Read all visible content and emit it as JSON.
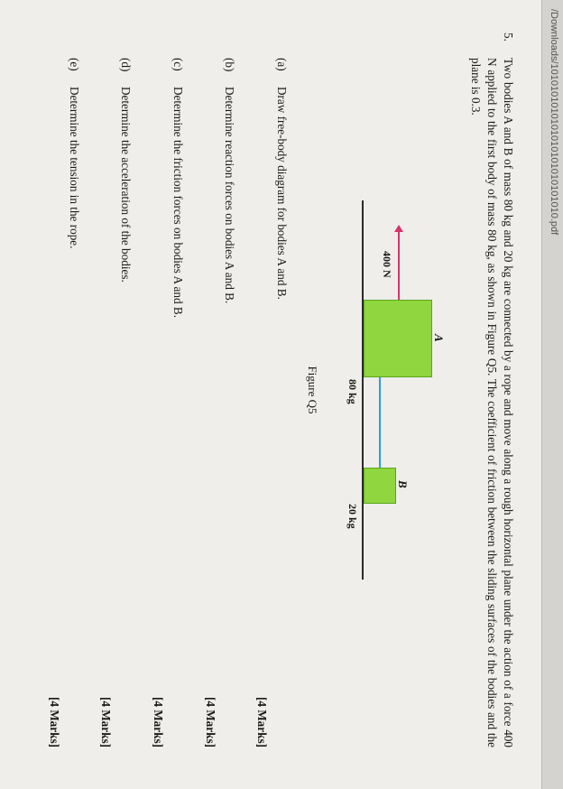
{
  "tab": {
    "filename": "/Downloads/1010101010101010101010101010.pdf"
  },
  "question": {
    "number": "5.",
    "stem": "Two bodies A and B of mass 80 kg and 20 kg are connected by a rope and move along a rough horizontal plane under the action of a force 400 N applied to the first body of mass 80 kg, as shown in Figure Q5. The coefficient of friction between the sliding surfaces of the bodies and the plane is 0.3."
  },
  "figure": {
    "label_a": "A",
    "label_b": "B",
    "mass_a": "80 kg",
    "mass_b": "20 kg",
    "force": "400 N",
    "caption": "Figure Q5",
    "colors": {
      "block_fill": "#8fd63f",
      "block_border": "#5aa61a",
      "arrow": "#d6336c",
      "rope": "#2aa0d8",
      "surface": "#2a2a2a"
    }
  },
  "parts": [
    {
      "label": "(a)",
      "text": "Draw free-body diagram for bodies A and B.",
      "marks": "[4 Marks]"
    },
    {
      "label": "(b)",
      "text": "Determine reaction forces on bodies A and B.",
      "marks": "[4 Marks]"
    },
    {
      "label": "(c)",
      "text": "Determine the friction forces on bodies A and B.",
      "marks": "[4 Marks]"
    },
    {
      "label": "(d)",
      "text": "Determine the acceleration of the bodies.",
      "marks": "[4 Marks]"
    },
    {
      "label": "(e)",
      "text": "Determine the tension in the rope.",
      "marks": "[4 Marks]"
    }
  ]
}
